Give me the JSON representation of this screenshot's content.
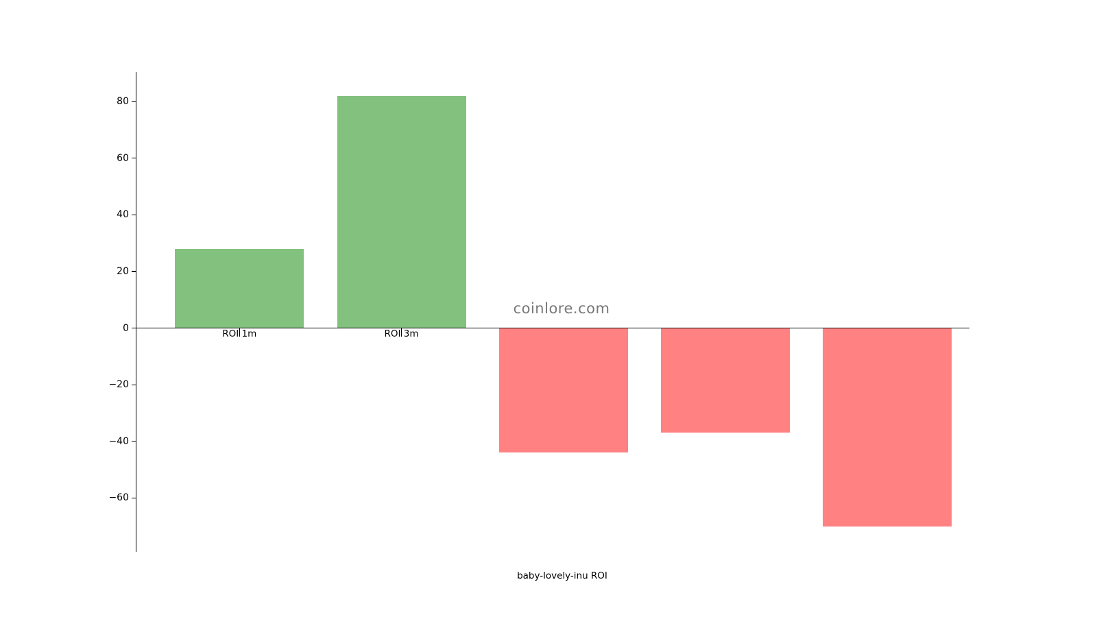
{
  "watermark": {
    "label": "coinlore.com"
  },
  "footer": {
    "title": "baby-lovely-inu ROI"
  },
  "chart_data": {
    "type": "bar",
    "title": "baby-lovely-inu ROI",
    "categories": [
      "ROI 1m",
      "ROI 3m",
      "",
      "",
      ""
    ],
    "values": [
      28,
      82,
      -44,
      -37,
      -70
    ],
    "bar_kinds": [
      "positive",
      "positive",
      "negative",
      "negative",
      "negative"
    ],
    "xlabel": "",
    "ylabel": "",
    "ylim": [
      -79,
      90
    ],
    "yticks": [
      80,
      60,
      40,
      20,
      0,
      -20,
      -40,
      -60
    ],
    "grid": false,
    "legend": false,
    "watermark": "coinlore.com",
    "colors": {
      "positive": "#83c17e",
      "negative": "#ff8181",
      "watermark": "#787878",
      "axis": "#000000",
      "text": "#000000"
    }
  }
}
